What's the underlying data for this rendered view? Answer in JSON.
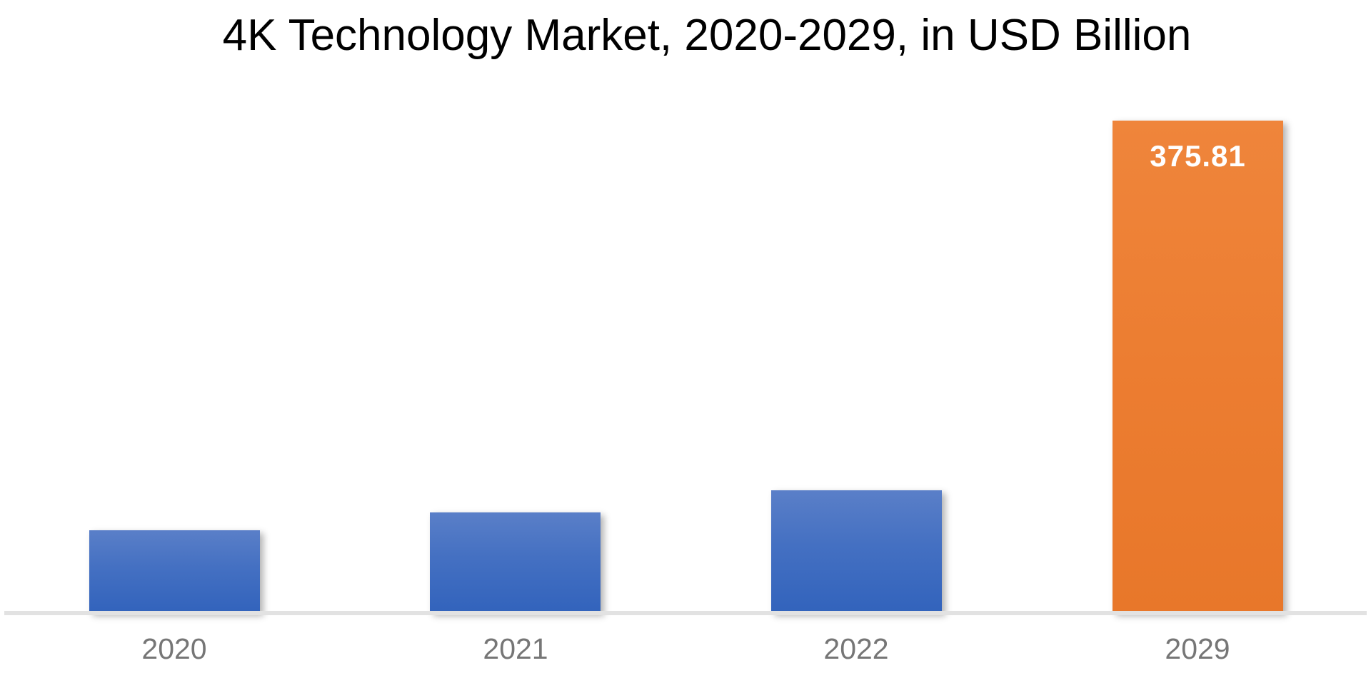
{
  "title": "4K Technology Market, 2020-2029, in USD Billion",
  "chart_data": {
    "type": "bar",
    "title": "4K Technology Market, 2020-2029, in USD Billion",
    "categories": [
      "2020",
      "2021",
      "2022",
      "2029"
    ],
    "values": [
      62.95,
      76.8,
      93.7,
      375.81
    ],
    "data_labels": [
      "",
      "",
      "",
      "375.81"
    ],
    "xlabel": "",
    "ylabel": "",
    "ylim": [
      0,
      400
    ],
    "grid": false,
    "legend": false,
    "y_axis_visible": false,
    "highlight_index": 3,
    "colors": {
      "background": "#FFFFFF",
      "bar_default": "#4472C4",
      "bar_default_gradient_top": "#5A7FC8",
      "bar_default_gradient_bottom": "#3263BC",
      "bar_highlight": "#ED7D31",
      "axis_line": "#E2E2E2",
      "tick_label": "#767676",
      "data_label": "#FFFFFF",
      "title": "#000000"
    }
  }
}
